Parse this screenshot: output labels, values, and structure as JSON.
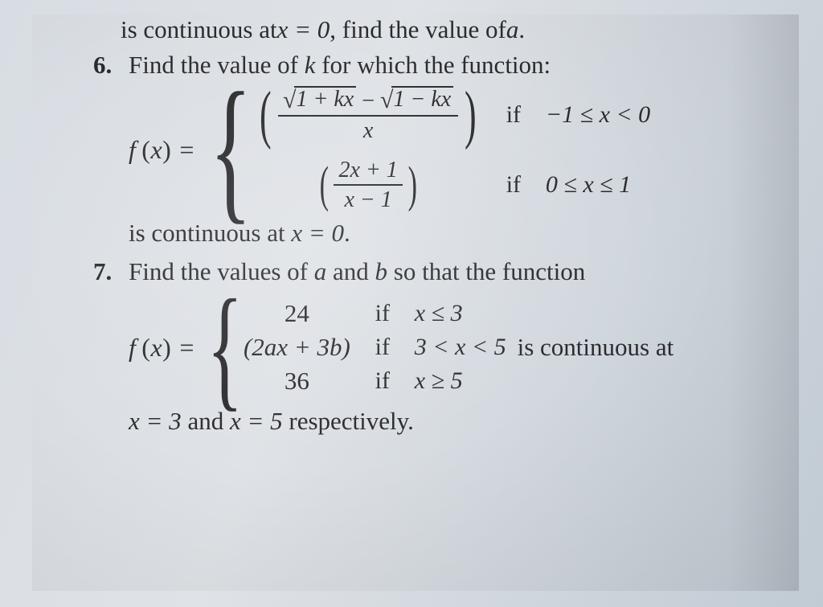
{
  "colors": {
    "text": "#2b2b2e",
    "background_start": "#d8dde3",
    "background_end": "#c1cbd4",
    "rule": "#2b2b2e"
  },
  "typography": {
    "body_fontsize": 31,
    "math_fontsize": 30,
    "font_family": "Georgia, Times New Roman, serif"
  },
  "fragment_prev": {
    "text_a": "is continuous at ",
    "x_eq_0": "x = 0",
    "text_b": ", find the value of ",
    "var_a": "a",
    "period": "."
  },
  "q6": {
    "number": "6.",
    "lead": "Find the value of ",
    "var_k": "k",
    "lead_b": " for which the function:",
    "fx": "f",
    "x": "x",
    "eq": "=",
    "case1": {
      "sqrt1_inner": "1 + kx",
      "minus": " − ",
      "sqrt2_inner": "1 − kx",
      "denom": "x",
      "if": "if",
      "cond": "−1 ≤ x < 0"
    },
    "case2": {
      "num": "2x + 1",
      "den": "x − 1",
      "if": "if",
      "cond": "0 ≤ x ≤ 1"
    },
    "cont_a": "is continuous at ",
    "cont_b": "x = 0",
    "cont_c": "."
  },
  "q7": {
    "number": "7.",
    "lead_a": "Find the values of ",
    "var_a": "a",
    "and": " and ",
    "var_b": "b",
    "lead_b": " so that the function",
    "fx": "f",
    "x": "x",
    "eq": "=",
    "row1": {
      "expr": "24",
      "if": "if",
      "cond": "x ≤ 3"
    },
    "row2": {
      "expr": "(2ax + 3b)",
      "if": "if",
      "cond": "3 < x < 5"
    },
    "row3": {
      "expr": "36",
      "if": "if",
      "cond": "x ≥ 5"
    },
    "trail": "is continuous at",
    "tail_a": "x = 3",
    "tail_and": " and ",
    "tail_b": "x = 5",
    "tail_c": " respectively."
  }
}
